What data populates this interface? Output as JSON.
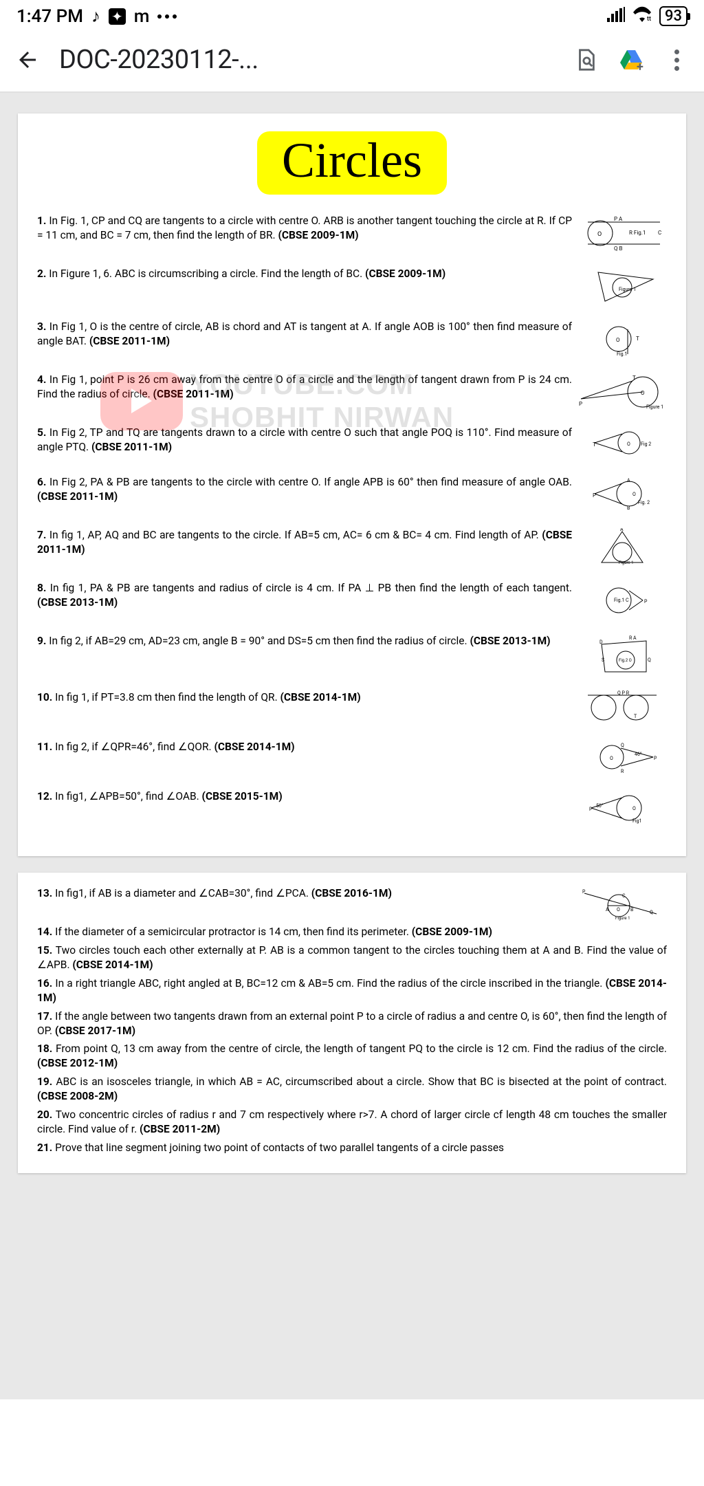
{
  "status": {
    "time": "1:47 PM",
    "battery": "93"
  },
  "appbar": {
    "title": "DOC-20230112-..."
  },
  "doc": {
    "chapter_title": "Circles",
    "watermark_line1": "YOUTUBE.COM",
    "watermark_line2": "SHOBHIT NIRWAN",
    "questions_p1": [
      {
        "n": "1.",
        "t": "In Fig. 1, CP and CQ are tangents to a circle with centre O. ARB is another tangent touching the circle at R. If CP = 11 cm, and BC = 7 cm, then find the length of BR. <b>(CBSE 2009-1M)</b>",
        "fig": "fig1a"
      },
      {
        "n": "2.",
        "t": "In Figure 1, 6. ABC is circumscribing a circle. Find the length of BC. <b>(CBSE 2009-1M)</b>",
        "fig": "fig2a"
      },
      {
        "n": "3.",
        "t": "In Fig 1, O is the centre of circle, AB is chord and AT is tangent at A. If angle AOB is 100° then find measure of angle BAT. <b>(CBSE 2011-1M)</b>",
        "fig": "fig3a"
      },
      {
        "n": "4.",
        "t": "In Fig 1, point P is 26 cm away from the centre O of a circle and the length of tangent drawn from P is 24 cm. Find the radius of circle. <b>(CBSE 2011-1M)</b>",
        "fig": "fig4a"
      },
      {
        "n": "5.",
        "t": "In Fig 2, TP and TQ are tangents drawn to a circle with centre O such that angle POQ is 110°. Find measure of angle PTQ. <b>(CBSE 2011-1M)</b>",
        "fig": "fig5a"
      },
      {
        "n": "6.",
        "t": "In Fig 2, PA & PB are tangents to the circle with centre O. If angle APB is 60° then find measure of angle OAB. <b>(CBSE 2011-1M)</b>",
        "fig": "fig6a"
      },
      {
        "n": "7.",
        "t": "In fig 1, AP, AQ and BC are tangents to the circle. If AB=5 cm, AC= 6 cm & BC= 4 cm. Find length of AP. <b>(CBSE 2011-1M)</b>",
        "fig": "fig7a"
      },
      {
        "n": "8.",
        "t": "In fig 1, PA & PB are tangents and radius of circle is 4 cm. If PA ⊥ PB then find the length of each tangent. <b>(CBSE 2013-1M)</b>",
        "fig": "fig8a"
      },
      {
        "n": "9.",
        "t": "In fig 2, if AB=29 cm, AD=23 cm, angle B = 90° and DS=5 cm then find the radius of circle. <b>(CBSE 2013-1M)</b>",
        "fig": "fig9a"
      },
      {
        "n": "10.",
        "t": "In fig 1, if PT=3.8 cm then find the length of QR. <b>(CBSE 2014-1M)</b>",
        "fig": "fig10a"
      },
      {
        "n": "11.",
        "t": "In fig 2, if ∠QPR=46°, find ∠QOR. <b>(CBSE 2014-1M)</b>",
        "fig": "fig11a"
      },
      {
        "n": "12.",
        "t": "In fig1, ∠APB=50°, find ∠OAB. <b>(CBSE 2015-1M)</b>",
        "fig": "fig12a"
      }
    ],
    "questions_p2": [
      {
        "n": "13.",
        "t": "In fig1, if AB is a diameter and ∠CAB=30°, find ∠PCA. <b>(CBSE 2016-1M)</b>",
        "fig": "fig13a"
      },
      {
        "n": "14.",
        "t": "If the diameter of a semicircular protractor is 14 cm, then find its perimeter. <b>(CBSE 2009-1M)</b>"
      },
      {
        "n": "15.",
        "t": "Two circles touch each other externally at P. AB is a common tangent to the circles touching them at A and B.  Find the value of ∠APB. <b>(CBSE 2014-1M)</b>"
      },
      {
        "n": "16.",
        "t": "In a right triangle ABC, right angled at B, BC=12 cm & AB=5 cm. Find the radius of the circle inscribed in the triangle. <b>(CBSE 2014-1M)</b>"
      },
      {
        "n": "17.",
        "t": "If the angle between two tangents drawn from an external point P to a circle of radius a and centre O, is 60°, then find the length of OP. <b>(CBSE 2017-1M)</b>"
      },
      {
        "n": "18.",
        "t": "From point Q, 13 cm away from the centre of circle, the length of tangent PQ to the circle is 12 cm. Find the radius of the circle. <b>(CBSE 2012-1M)</b>"
      },
      {
        "n": "19.",
        "t": "ABC is an isosceles triangle, in which AB = AC, circumscribed about a circle. Show that BC is bisected at the point of contract. <b>(CBSE 2008-2M)</b>"
      },
      {
        "n": "20.",
        "t": "Two concentric circles of radius r and 7 cm respectively where r>7. A chord of larger circle cf length 48 cm touches the smaller circle. Find value of r. <b>(CBSE 2011-2M)</b>"
      },
      {
        "n": "21.",
        "t": "Prove that line segment joining two point of contacts of two parallel tangents of a circle passes"
      }
    ]
  }
}
